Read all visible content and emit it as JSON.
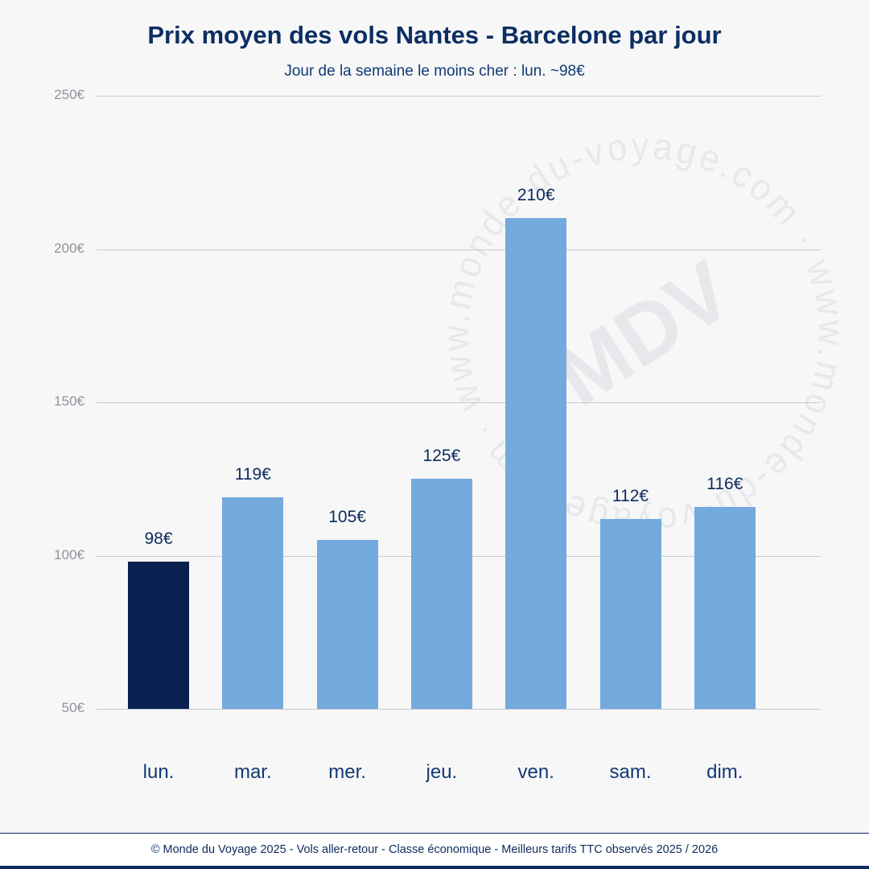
{
  "chart_data": {
    "type": "bar",
    "title": "Prix moyen des vols Nantes - Barcelone par jour",
    "subtitle": "Jour de la semaine le moins cher : lun. ~98€",
    "categories": [
      "lun.",
      "mar.",
      "mer.",
      "jeu.",
      "ven.",
      "sam.",
      "dim."
    ],
    "values": [
      98,
      119,
      105,
      125,
      210,
      112,
      116
    ],
    "value_suffix": "€",
    "ylim": [
      50,
      250
    ],
    "yticks": [
      50,
      100,
      150,
      200,
      250
    ],
    "grid": true,
    "highlight_index": 0,
    "bar_color": "#74a9de",
    "highlight_color": "#0a2050",
    "xlabel": "",
    "ylabel": ""
  },
  "watermark": {
    "ring_text": "· www.monde-du-voyage.com · www.monde-du-voyage.com",
    "center_text": "MDV"
  },
  "footer": {
    "text": "© Monde du Voyage 2025 - Vols aller-retour - Classe économique - Meilleurs tarifs TTC observés 2025 / 2026"
  }
}
